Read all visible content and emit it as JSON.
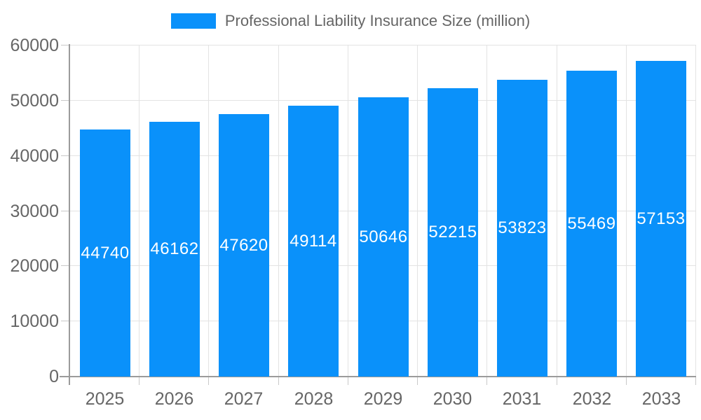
{
  "legend": {
    "label": "Professional Liability Insurance Size (million)"
  },
  "chart_data": {
    "type": "bar",
    "title": "Professional Liability Insurance Size (million)",
    "categories": [
      "2025",
      "2026",
      "2027",
      "2028",
      "2029",
      "2030",
      "2031",
      "2032",
      "2033"
    ],
    "values": [
      44740,
      46162,
      47620,
      49114,
      50646,
      52215,
      53823,
      55469,
      57153
    ],
    "value_labels": [
      "44740",
      "46162",
      "47620",
      "49114",
      "50646",
      "52215",
      "53823",
      "55469",
      "57153"
    ],
    "xlabel": "",
    "ylabel": "",
    "ylim": [
      0,
      60000
    ],
    "ytick_step": 10000,
    "ytick_labels": [
      "0",
      "10000",
      "20000",
      "30000",
      "40000",
      "50000",
      "60000"
    ],
    "grid": true,
    "legend_position": "top",
    "colors": {
      "bar": "#0a91fa",
      "value_label": "#ffffff",
      "axis": "#9b9b9b",
      "grid": "#e3e3e3",
      "tick": "#c9c9c9",
      "text": "#666666"
    }
  }
}
